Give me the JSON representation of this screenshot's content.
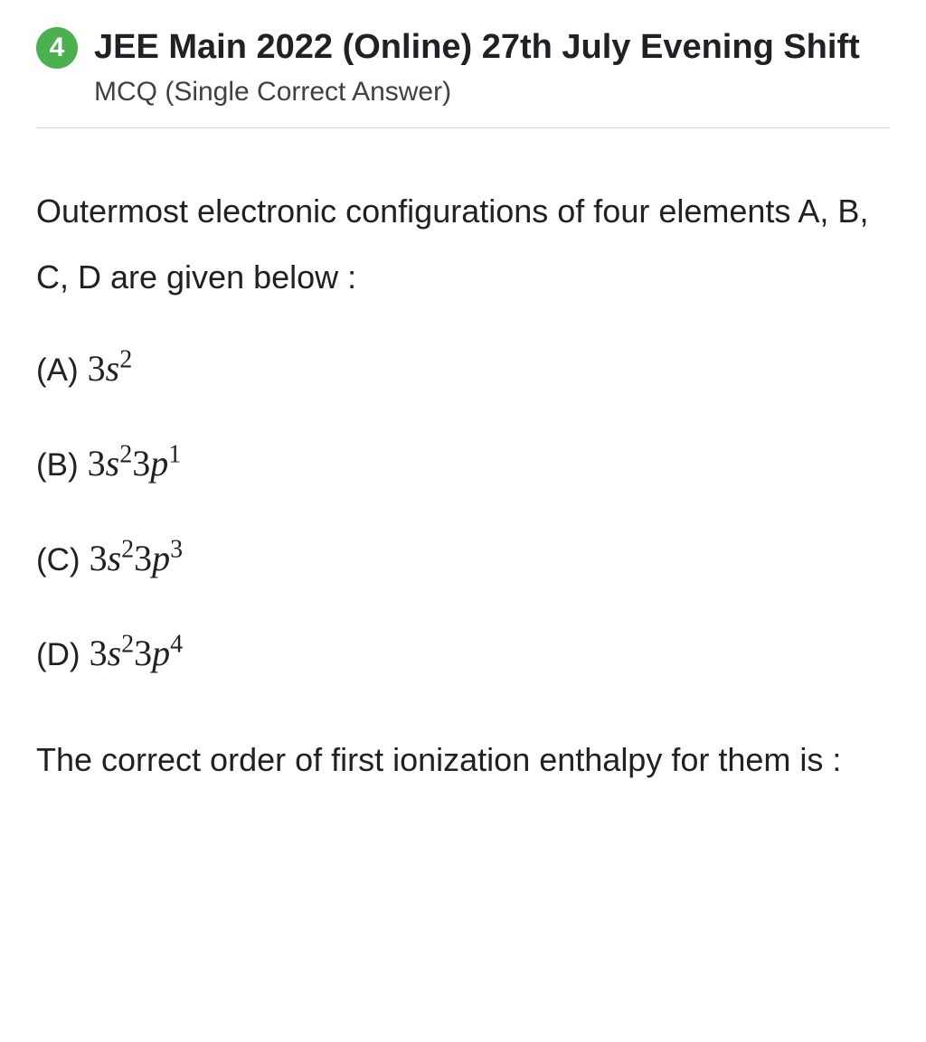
{
  "badge": {
    "number": "4",
    "bg_color": "#4caf50",
    "text_color": "#ffffff"
  },
  "header": {
    "exam_title": "JEE Main 2022 (Online) 27th July Evening Shift",
    "question_type": "MCQ (Single Correct Answer)"
  },
  "question": {
    "stem": "Outermost electronic configurations of four elements A, B, C, D are given below :",
    "options": [
      {
        "label": "(A)",
        "parts": [
          {
            "t": "num",
            "v": "3"
          },
          {
            "t": "var",
            "v": "s"
          },
          {
            "t": "sup",
            "v": "2"
          }
        ]
      },
      {
        "label": "(B)",
        "parts": [
          {
            "t": "num",
            "v": "3"
          },
          {
            "t": "var",
            "v": "s"
          },
          {
            "t": "sup",
            "v": "2"
          },
          {
            "t": "num",
            "v": "3"
          },
          {
            "t": "var",
            "v": "p"
          },
          {
            "t": "sup",
            "v": "1"
          }
        ]
      },
      {
        "label": "(C)",
        "parts": [
          {
            "t": "num",
            "v": "3"
          },
          {
            "t": "var",
            "v": "s"
          },
          {
            "t": "sup",
            "v": "2"
          },
          {
            "t": "num",
            "v": "3"
          },
          {
            "t": "var",
            "v": "p"
          },
          {
            "t": "sup",
            "v": "3"
          }
        ]
      },
      {
        "label": "(D)",
        "parts": [
          {
            "t": "num",
            "v": "3"
          },
          {
            "t": "var",
            "v": "s"
          },
          {
            "t": "sup",
            "v": "2"
          },
          {
            "t": "num",
            "v": "3"
          },
          {
            "t": "var",
            "v": "p"
          },
          {
            "t": "sup",
            "v": "4"
          }
        ]
      }
    ],
    "follow_text": "The correct order of first ionization enthalpy for them is :"
  },
  "colors": {
    "text_primary": "#202124",
    "text_secondary": "#414141",
    "divider": "#d9d9d9",
    "background": "#ffffff"
  },
  "typography": {
    "title_fontsize": 38,
    "subtitle_fontsize": 30,
    "body_fontsize": 36,
    "option_label_fontsize": 35,
    "math_fontsize": 40,
    "sup_fontsize": 28
  }
}
